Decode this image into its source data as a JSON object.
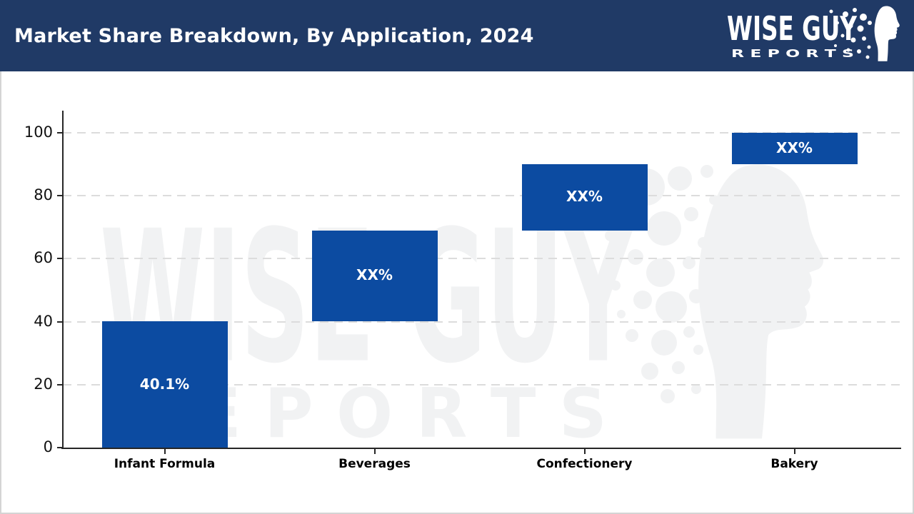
{
  "header": {
    "title": "Market Share Breakdown, By Application, 2024",
    "bg_color": "#203a66",
    "logo": {
      "line1": "WISE GUY",
      "line2": "R E P O R T S"
    }
  },
  "watermark": {
    "line1": "WISE GUY",
    "line2": "R E P O R T S"
  },
  "chart_data": {
    "type": "bar",
    "subtype": "waterfall",
    "title": "Market Share Breakdown, By Application, 2024",
    "categories": [
      "Infant Formula",
      "Beverages",
      "Confectionery",
      "Bakery"
    ],
    "segments": [
      {
        "category": "Infant Formula",
        "start": 0,
        "end": 40.1,
        "label": "40.1%"
      },
      {
        "category": "Beverages",
        "start": 40.1,
        "end": 69,
        "label": "XX%"
      },
      {
        "category": "Confectionery",
        "start": 69,
        "end": 90,
        "label": "XX%"
      },
      {
        "category": "Bakery",
        "start": 90,
        "end": 100,
        "label": "XX%"
      }
    ],
    "series": [
      {
        "name": "Market Share",
        "values": [
          40.1,
          28.9,
          21,
          10
        ]
      }
    ],
    "value_labels": [
      "40.1%",
      "XX%",
      "XX%",
      "XX%"
    ],
    "xlabel": "",
    "ylabel": "",
    "yticks": [
      0,
      20,
      40,
      60,
      80,
      100
    ],
    "ylim": [
      0,
      100
    ],
    "grid": "dashed-horizontal",
    "legend": "none",
    "bar_color": "#0c4ba1",
    "grid_color": "#dcdcdc",
    "axis_color": "#262626",
    "label_color": "#ffffff"
  }
}
